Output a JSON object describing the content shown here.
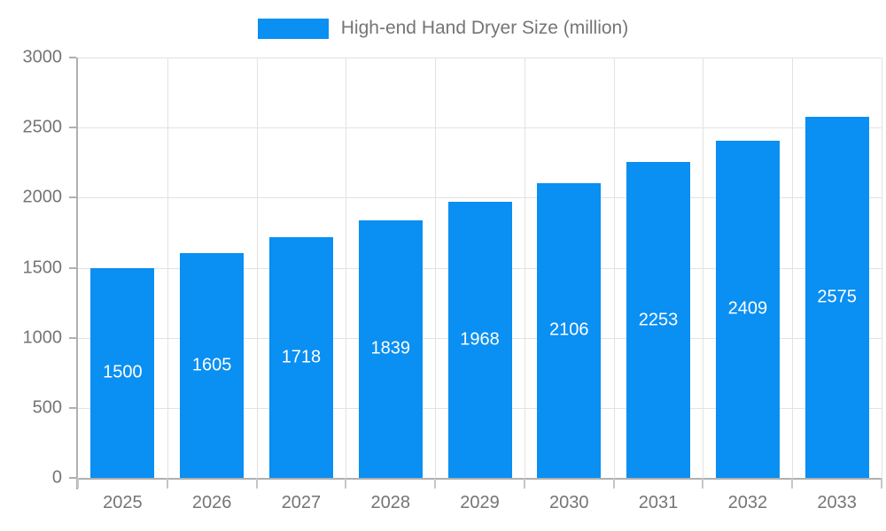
{
  "legend": {
    "label": "High-end Hand Dryer Size (million)"
  },
  "chart_data": {
    "type": "bar",
    "title": "High-end Hand Dryer Size (million)",
    "categories": [
      "2025",
      "2026",
      "2027",
      "2028",
      "2029",
      "2030",
      "2031",
      "2032",
      "2033"
    ],
    "values": [
      1500,
      1605,
      1718,
      1839,
      1968,
      2106,
      2253,
      2409,
      2575
    ],
    "value_labels": [
      "1500",
      "1605",
      "1718",
      "1839",
      "1968",
      "2106",
      "2253",
      "2409",
      "2575"
    ],
    "y_tick_labels": [
      "0",
      "500",
      "1000",
      "1500",
      "2000",
      "2500",
      "3000"
    ],
    "xlabel": "",
    "ylabel": "",
    "ylim": [
      0,
      3000
    ],
    "ytick_step": 500,
    "grid": true,
    "legend_position": "top-center",
    "bar_color": "#0a8ff2",
    "value_label_color": "#ffffff",
    "axis_text_color": "#757575",
    "axis_line_color": "#b0b0b0",
    "gridline_color": "#e2e2e2"
  }
}
